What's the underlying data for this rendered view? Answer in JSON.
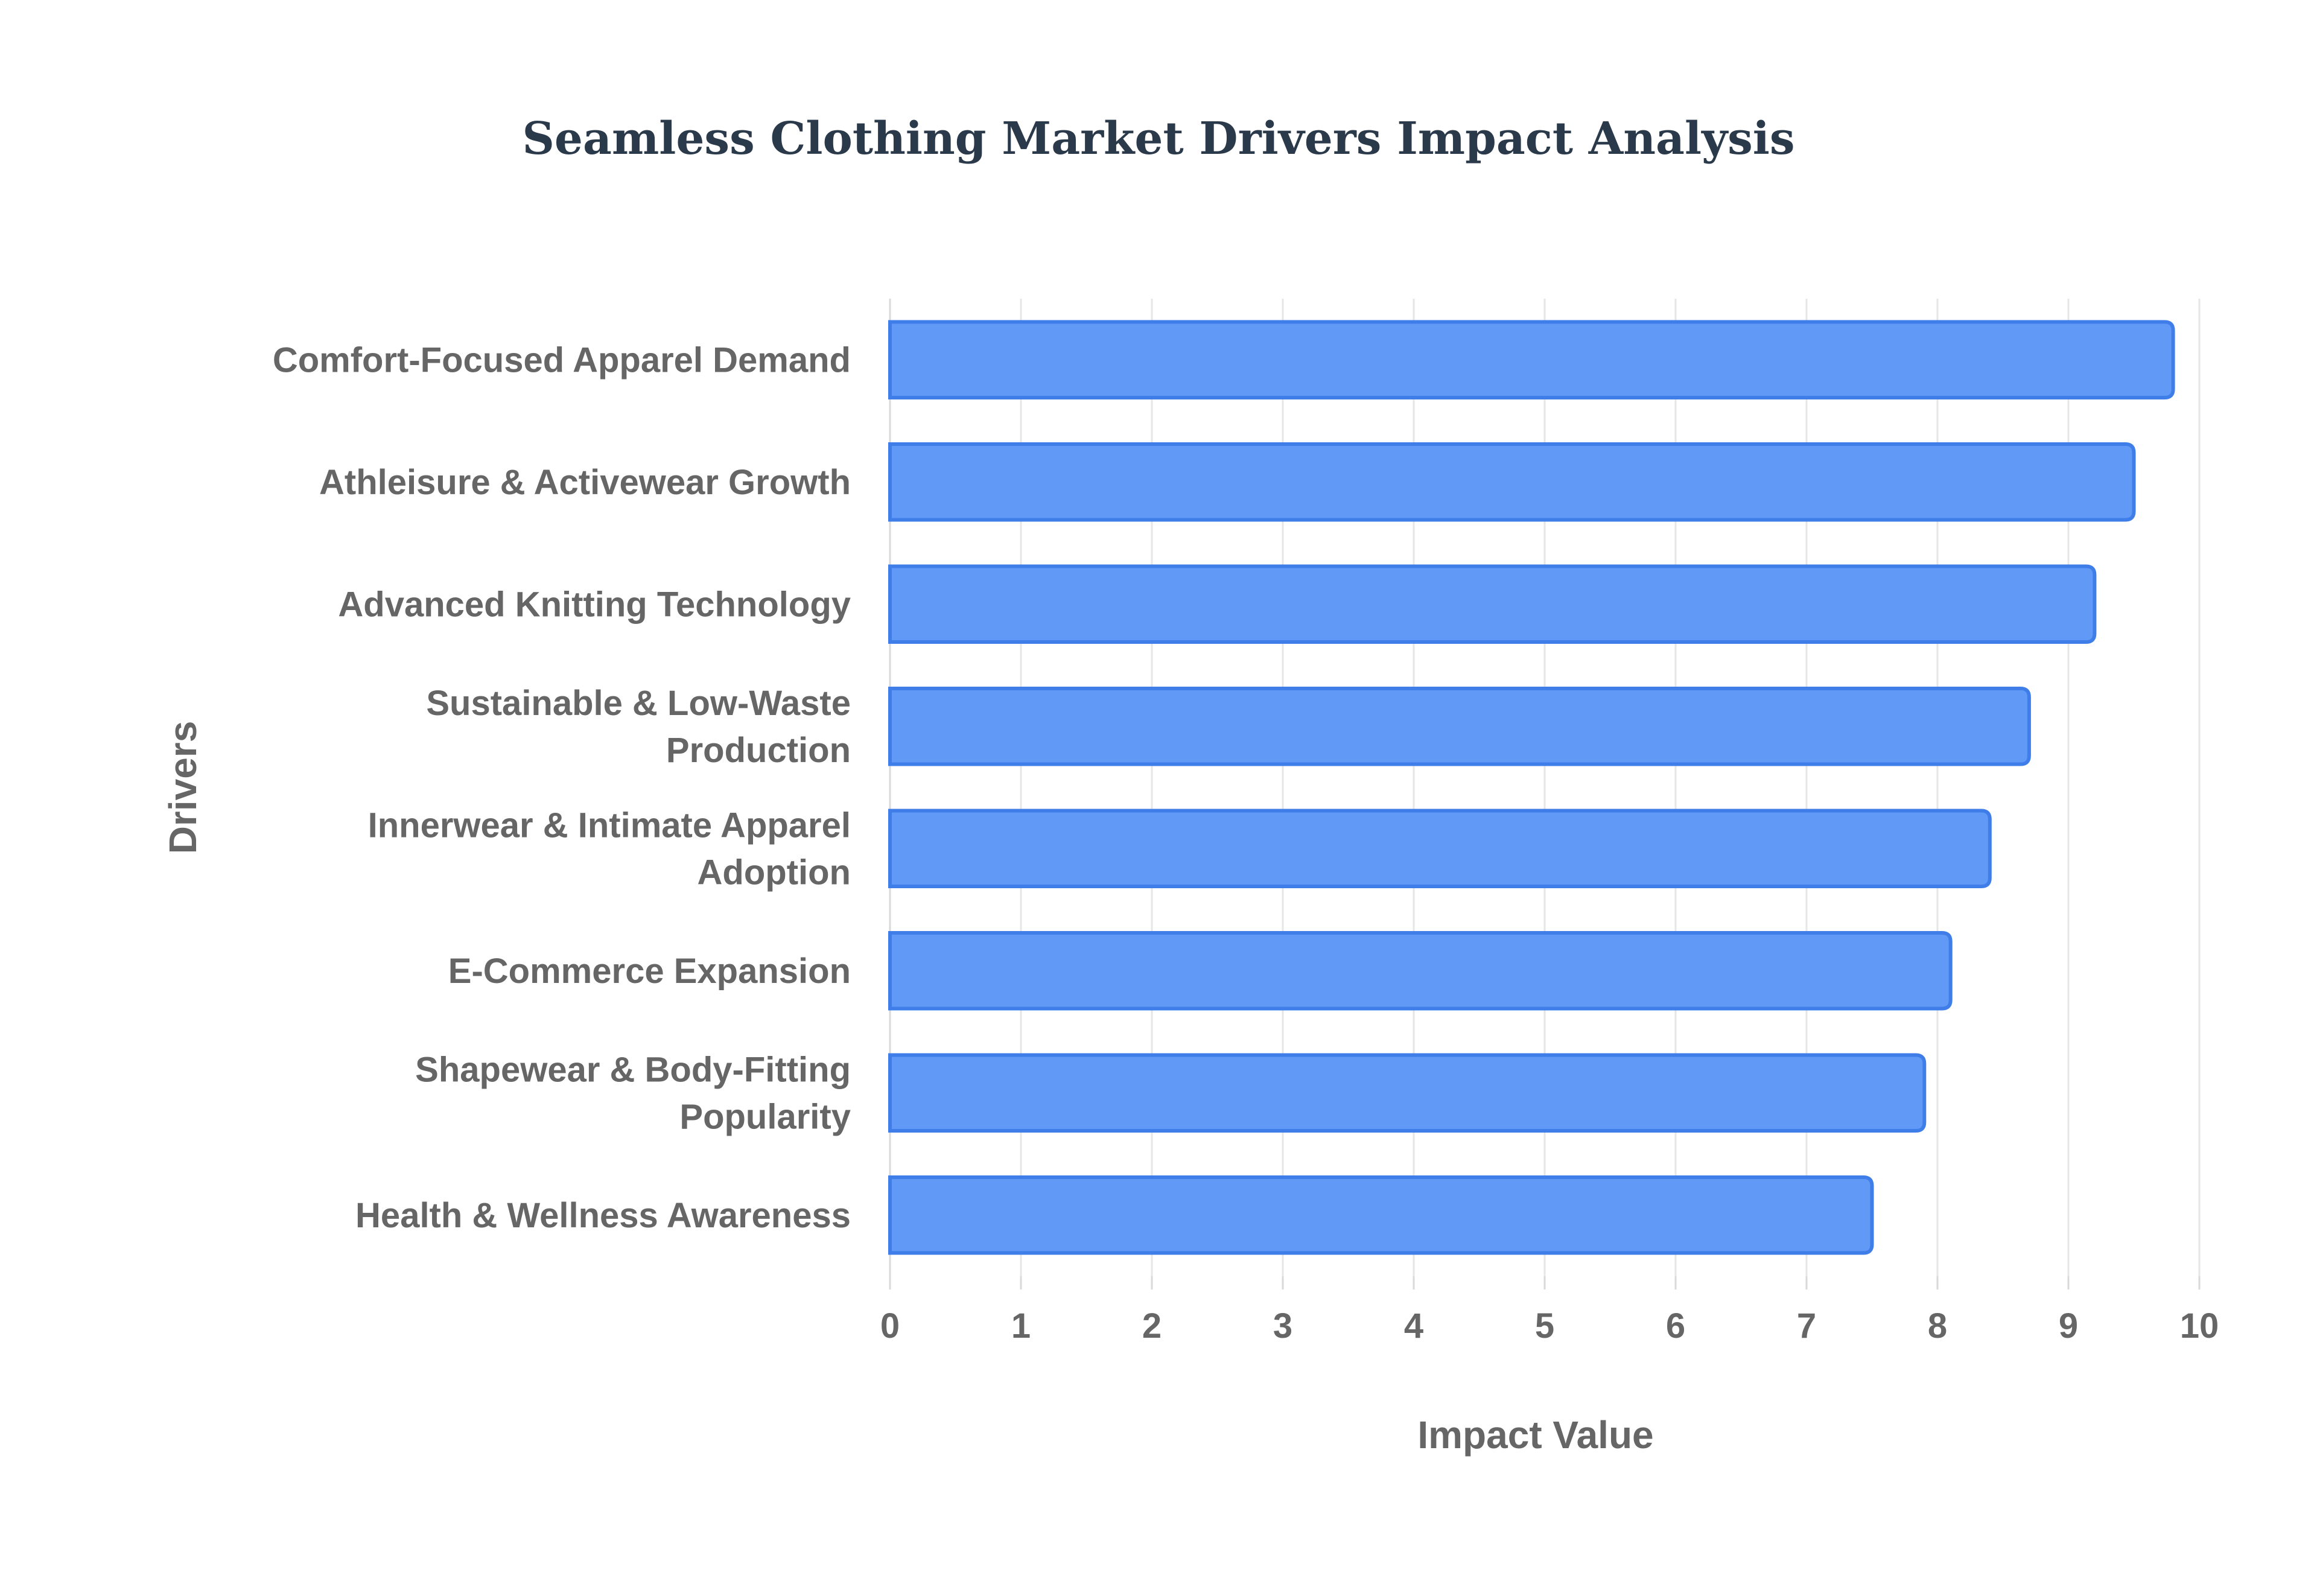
{
  "chart_data": {
    "type": "bar",
    "orientation": "horizontal",
    "title": "Seamless Clothing Market Drivers Impact Analysis",
    "xlabel": "Impact Value",
    "ylabel": "Drivers",
    "xlim": [
      0,
      10
    ],
    "x_ticks": [
      "0",
      "1",
      "2",
      "3",
      "4",
      "5",
      "6",
      "7",
      "8",
      "9",
      "10"
    ],
    "grid": true,
    "legend": "none",
    "bar_color": "#6199f6",
    "bar_edge_color": "#3f7ee8",
    "categories": [
      [
        "Comfort-Focused Apparel Demand"
      ],
      [
        "Athleisure & Activewear Growth"
      ],
      [
        "Advanced Knitting Technology"
      ],
      [
        "Sustainable & Low-Waste",
        "Production"
      ],
      [
        "Innerwear & Intimate Apparel",
        "Adoption"
      ],
      [
        "E-Commerce Expansion"
      ],
      [
        "Shapewear & Body-Fitting",
        "Popularity"
      ],
      [
        "Health & Wellness Awareness"
      ]
    ],
    "values": [
      9.8,
      9.5,
      9.2,
      8.7,
      8.4,
      8.1,
      7.9,
      7.5
    ]
  }
}
